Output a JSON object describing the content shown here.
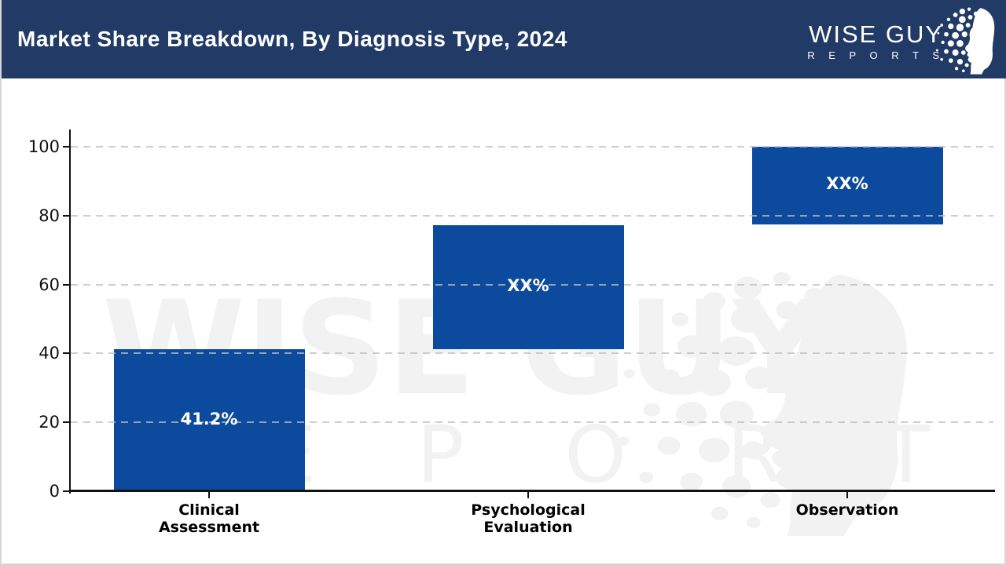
{
  "header": {
    "title": "Market Share Breakdown, By Diagnosis Type, 2024",
    "logo_line1": "WISE GUY",
    "logo_line2": "R E P O R T S"
  },
  "watermark": {
    "line1": "WISE GUY",
    "line2": "R E P O R T S"
  },
  "colors": {
    "header_bg": "#213a66",
    "bar": "#0c4a9e",
    "bar_label_text": "#ffffff",
    "axis": "#111111",
    "gridline": "#d6d6d6",
    "watermark": "#f2f2f2"
  },
  "chart_data": {
    "type": "bar",
    "subtype": "cumulative floating segment bars (waterfall style)",
    "title": "Market Share Breakdown, By Diagnosis Type, 2024",
    "categories": [
      "Clinical Assessment",
      "Psychological Evaluation",
      "Observation"
    ],
    "category_label_lines": [
      [
        "Clinical",
        "Assessment"
      ],
      [
        "Psychological",
        "Evaluation"
      ],
      [
        "Observation"
      ]
    ],
    "bar_labels": [
      "41.2%",
      "XX%",
      "XX%"
    ],
    "segments": [
      {
        "category": "Clinical Assessment",
        "from": 0,
        "to": 41.2,
        "label": "41.2%"
      },
      {
        "category": "Psychological Evaluation",
        "from": 41.2,
        "to": 77.3,
        "label": "XX%"
      },
      {
        "category": "Observation",
        "from": 77.5,
        "to": 100,
        "label": "XX%"
      }
    ],
    "values_pct_estimated": [
      41.2,
      36.1,
      22.5
    ],
    "ylim": [
      0,
      100
    ],
    "yticks": [
      0,
      20,
      40,
      60,
      80,
      100
    ],
    "xlabel": "",
    "ylabel": "",
    "grid": "horizontal dashed",
    "legend": "none"
  }
}
